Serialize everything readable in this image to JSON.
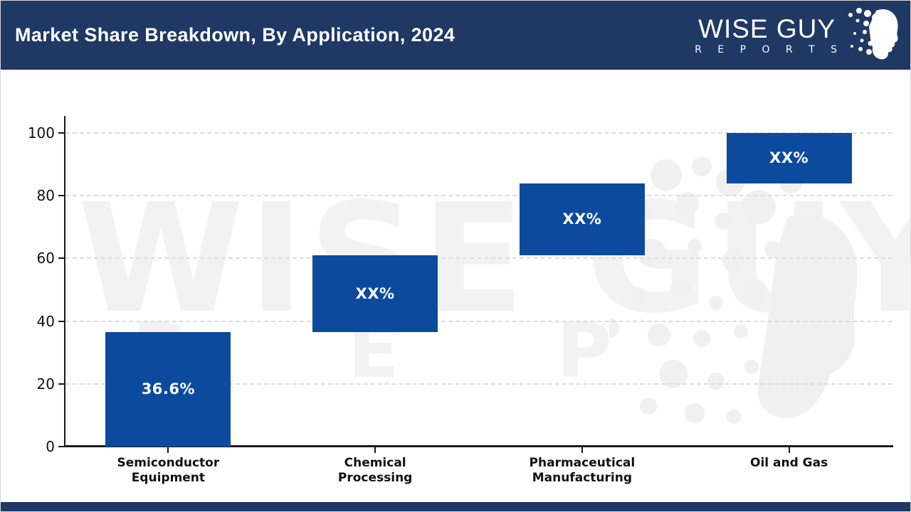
{
  "header": {
    "title": "Market Share Breakdown, By Application, 2024",
    "logo_line1": "WISE GUY",
    "logo_line2": "R E P O R T S",
    "bg_color": "#1f3864"
  },
  "watermark": {
    "line1": "WISE GUY",
    "line2": "R E P O R T S"
  },
  "chart_data": {
    "type": "bar",
    "subtype": "waterfall-breakdown",
    "title": "Market Share Breakdown, By Application, 2024",
    "categories": [
      "Semiconductor\nEquipment",
      "Chemical\nProcessing",
      "Pharmaceutical\nManufacturing",
      "Oil and Gas"
    ],
    "segments": [
      {
        "category": "Semiconductor Equipment",
        "start": 0,
        "end": 36.6,
        "label": "36.6%"
      },
      {
        "category": "Chemical Processing",
        "start": 36.6,
        "end": 61,
        "label": "XX%"
      },
      {
        "category": "Pharmaceutical Manufacturing",
        "start": 61,
        "end": 84,
        "label": "XX%"
      },
      {
        "category": "Oil and Gas",
        "start": 84,
        "end": 100,
        "label": "XX%"
      }
    ],
    "ylim": [
      0,
      100
    ],
    "yticks": [
      0,
      20,
      40,
      60,
      80,
      100
    ],
    "xlabel": "",
    "ylabel": "",
    "grid": "horizontal-dashed",
    "legend": "none",
    "bar_color": "#0c4a9e",
    "bar_label_color": "#ffffff"
  }
}
